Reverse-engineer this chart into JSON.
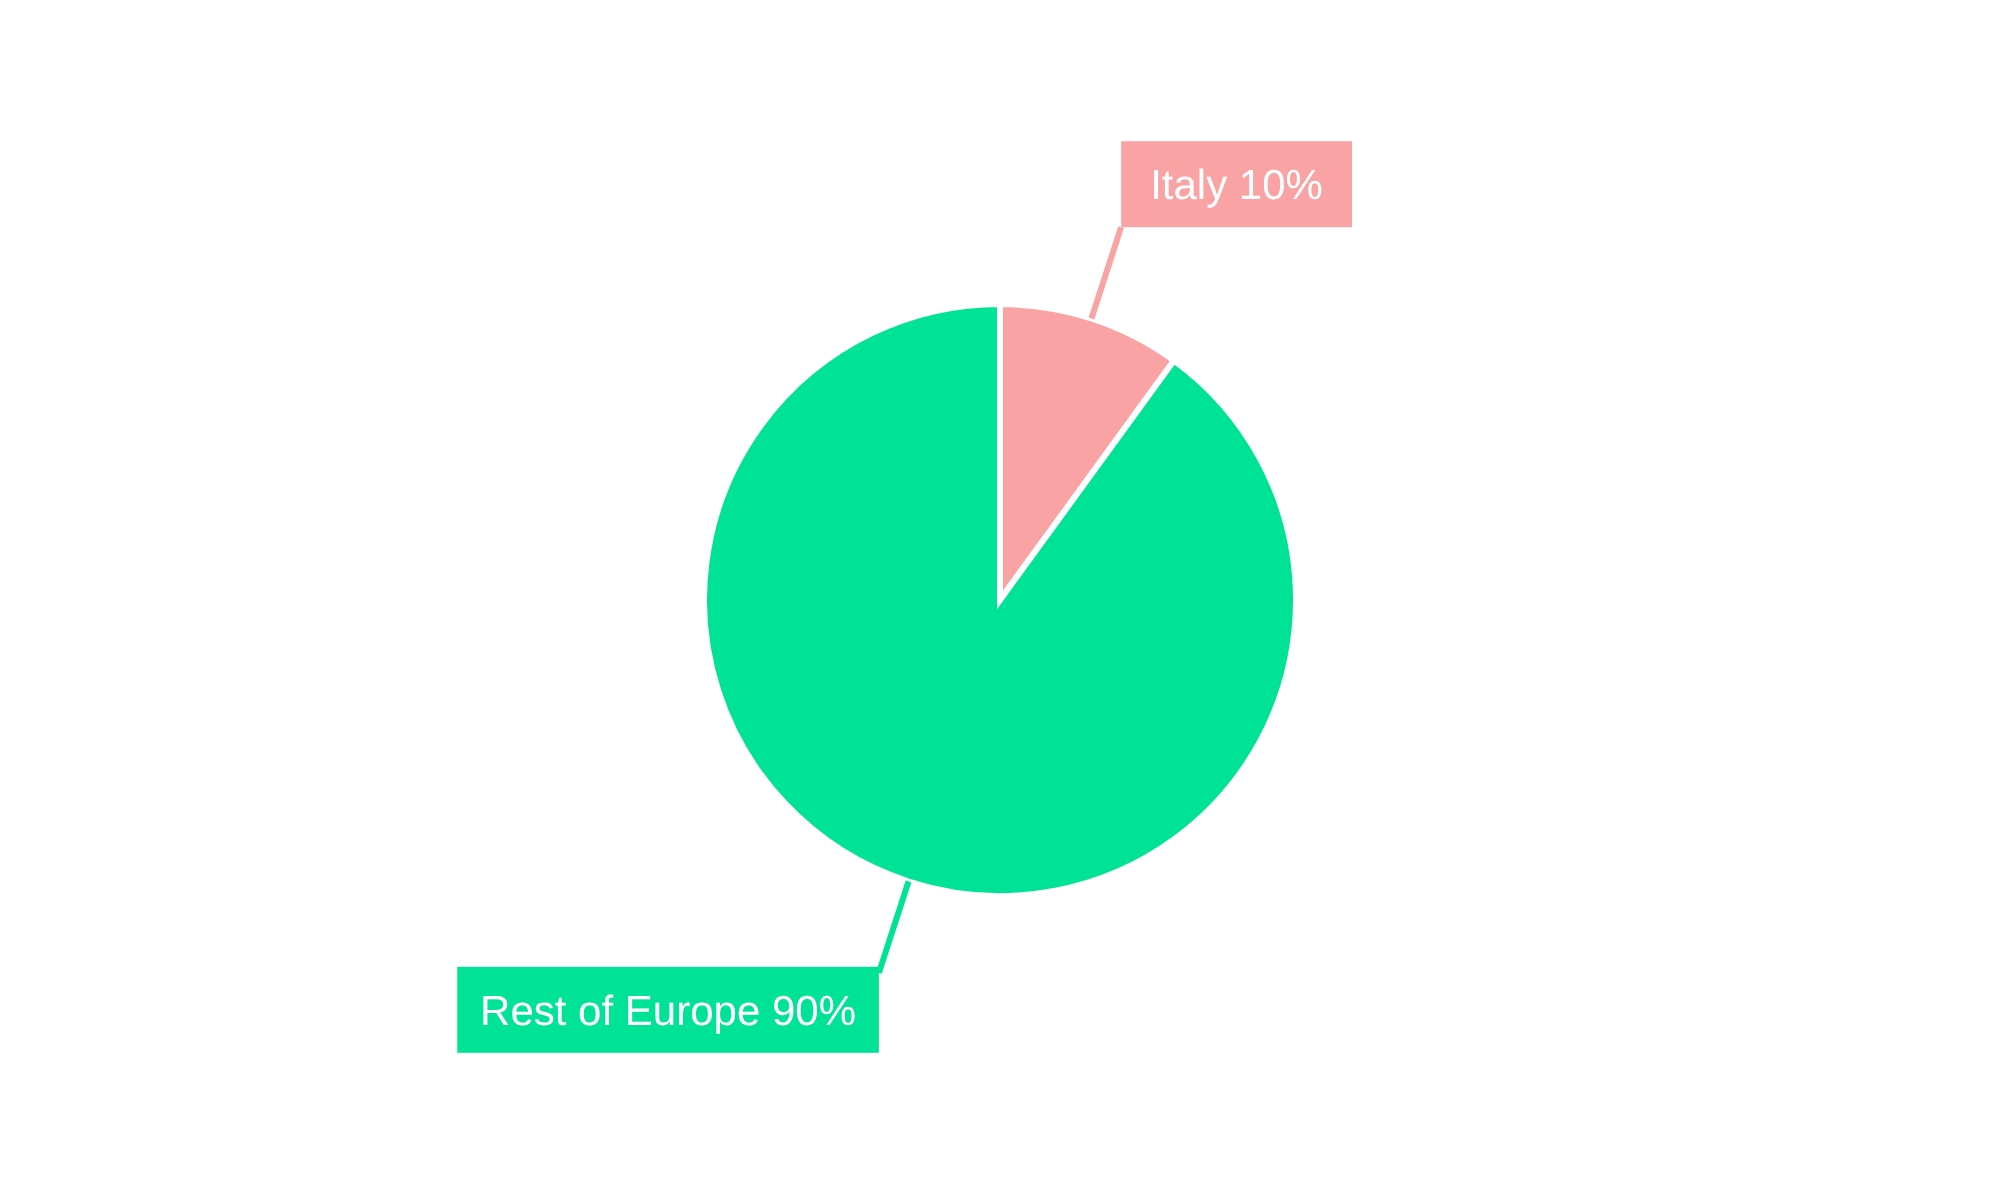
{
  "chart_data": {
    "type": "pie",
    "categories": [
      "Italy",
      "Rest of Europe"
    ],
    "values": [
      10,
      90
    ],
    "colors": [
      "#f9a3a4",
      "#00e396"
    ],
    "value_labels": [
      "10%",
      "90%"
    ]
  }
}
